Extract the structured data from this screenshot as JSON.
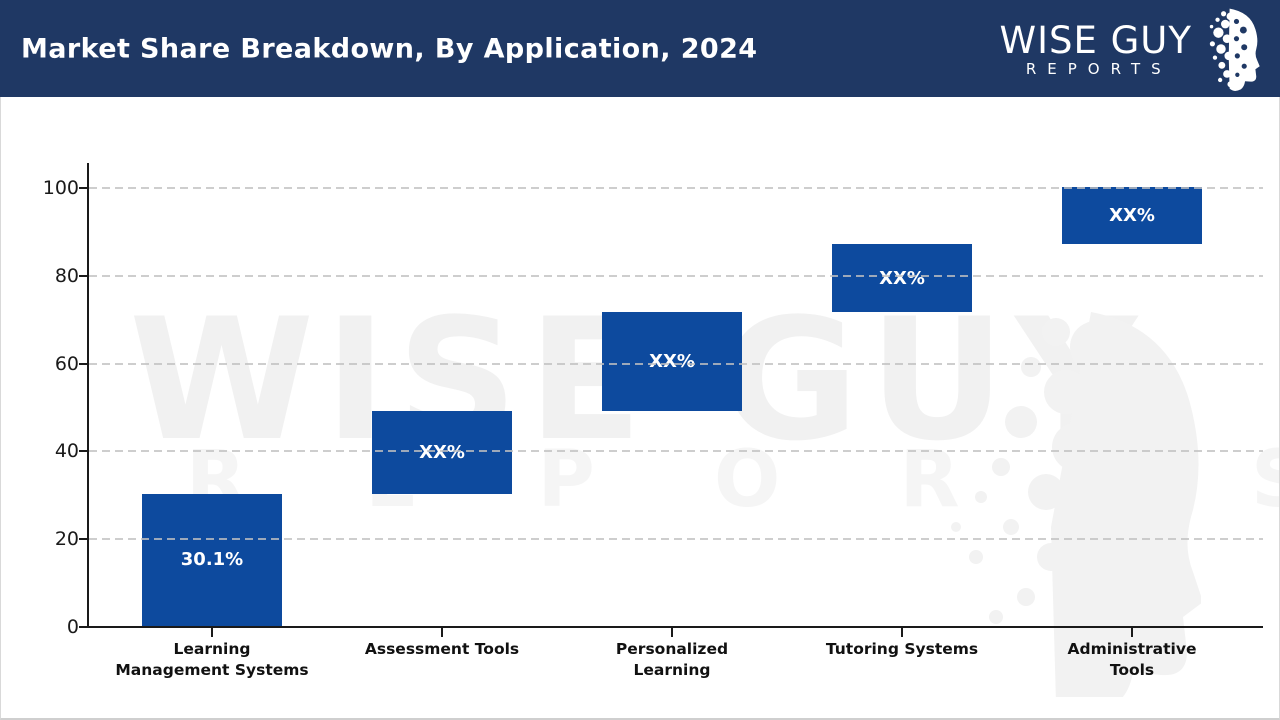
{
  "header": {
    "title": "Market Share Breakdown, By Application, 2024",
    "bg_color": "#1f3864",
    "logo": {
      "line1": "WISE GUY",
      "line2": "REPORTS"
    }
  },
  "watermark": {
    "line1": "WISE GUY",
    "line2": "R E P O R T S"
  },
  "chart_data": {
    "type": "bar",
    "subtype": "waterfall",
    "title": "Market Share Breakdown, By Application, 2024",
    "categories": [
      "Learning\nManagement Systems",
      "Assessment Tools",
      "Personalized\nLearning",
      "Tutoring Systems",
      "Administrative\nTools"
    ],
    "segments": [
      {
        "category": "Learning Management Systems",
        "start": 0,
        "end": 30.1,
        "label": "30.1%"
      },
      {
        "category": "Assessment Tools",
        "start": 30.1,
        "end": 49,
        "label": "XX%"
      },
      {
        "category": "Personalized Learning",
        "start": 49,
        "end": 71.5,
        "label": "XX%"
      },
      {
        "category": "Tutoring Systems",
        "start": 71.5,
        "end": 87,
        "label": "XX%"
      },
      {
        "category": "Administrative Tools",
        "start": 87,
        "end": 100,
        "label": "XX%"
      }
    ],
    "ylim": [
      0,
      100
    ],
    "yticks": [
      "0",
      "20",
      "40",
      "60",
      "80",
      "100"
    ],
    "grid": {
      "axis": "y",
      "style": "dashed",
      "color": "#d9d9d9"
    },
    "bar_color": "#0d4a9e",
    "bar_label_color": "#ffffff",
    "legend": "none"
  }
}
